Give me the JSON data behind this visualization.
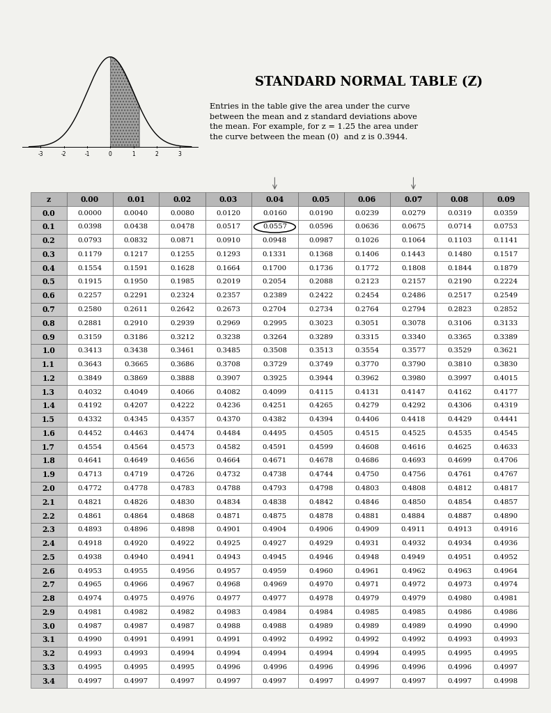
{
  "title_parts": [
    "S",
    "TANDARD ",
    "N",
    "ORMAL ",
    "T",
    "ABLE (",
    "Z",
    ")"
  ],
  "title_smallcaps": "STANDARD NORMAL TABLE (Z)",
  "description_lines": [
    "Entries in the table give the area under the curve",
    "between the mean and z standard deviations above",
    "the mean. For example, for z = 1.25 the area under",
    "the curve between the mean (0)  and z is 0.3944."
  ],
  "col_headers": [
    "0.00",
    "0.01",
    "0.02",
    "0.03",
    "0.04",
    "0.05",
    "0.06",
    "0.07",
    "0.08",
    "0.09"
  ],
  "row_labels": [
    "0.0",
    "0.1",
    "0.2",
    "0.3",
    "0.4",
    "0.5",
    "0.6",
    "0.7",
    "0.8",
    "0.9",
    "1.0",
    "1.1",
    "1.2",
    "1.3",
    "1.4",
    "1.5",
    "1.6",
    "1.7",
    "1.8",
    "1.9",
    "2.0",
    "2.1",
    "2.2",
    "2.3",
    "2.4",
    "2.5",
    "2.6",
    "2.7",
    "2.8",
    "2.9",
    "3.0",
    "3.1",
    "3.2",
    "3.3",
    "3.4"
  ],
  "table_data": [
    [
      "0.0000",
      "0.0040",
      "0.0080",
      "0.0120",
      "0.0160",
      "0.0190",
      "0.0239",
      "0.0279",
      "0.0319",
      "0.0359"
    ],
    [
      "0.0398",
      "0.0438",
      "0.0478",
      "0.0517",
      "0.0557",
      "0.0596",
      "0.0636",
      "0.0675",
      "0.0714",
      "0.0753"
    ],
    [
      "0.0793",
      "0.0832",
      "0.0871",
      "0.0910",
      "0.0948",
      "0.0987",
      "0.1026",
      "0.1064",
      "0.1103",
      "0.1141"
    ],
    [
      "0.1179",
      "0.1217",
      "0.1255",
      "0.1293",
      "0.1331",
      "0.1368",
      "0.1406",
      "0.1443",
      "0.1480",
      "0.1517"
    ],
    [
      "0.1554",
      "0.1591",
      "0.1628",
      "0.1664",
      "0.1700",
      "0.1736",
      "0.1772",
      "0.1808",
      "0.1844",
      "0.1879"
    ],
    [
      "0.1915",
      "0.1950",
      "0.1985",
      "0.2019",
      "0.2054",
      "0.2088",
      "0.2123",
      "0.2157",
      "0.2190",
      "0.2224"
    ],
    [
      "0.2257",
      "0.2291",
      "0.2324",
      "0.2357",
      "0.2389",
      "0.2422",
      "0.2454",
      "0.2486",
      "0.2517",
      "0.2549"
    ],
    [
      "0.2580",
      "0.2611",
      "0.2642",
      "0.2673",
      "0.2704",
      "0.2734",
      "0.2764",
      "0.2794",
      "0.2823",
      "0.2852"
    ],
    [
      "0.2881",
      "0.2910",
      "0.2939",
      "0.2969",
      "0.2995",
      "0.3023",
      "0.3051",
      "0.3078",
      "0.3106",
      "0.3133"
    ],
    [
      "0.3159",
      "0.3186",
      "0.3212",
      "0.3238",
      "0.3264",
      "0.3289",
      "0.3315",
      "0.3340",
      "0.3365",
      "0.3389"
    ],
    [
      "0.3413",
      "0.3438",
      "0.3461",
      "0.3485",
      "0.3508",
      "0.3513",
      "0.3554",
      "0.3577",
      "0.3529",
      "0.3621"
    ],
    [
      "0.3643",
      "0.3665",
      "0.3686",
      "0.3708",
      "0.3729",
      "0.3749",
      "0.3770",
      "0.3790",
      "0.3810",
      "0.3830"
    ],
    [
      "0.3849",
      "0.3869",
      "0.3888",
      "0.3907",
      "0.3925",
      "0.3944",
      "0.3962",
      "0.3980",
      "0.3997",
      "0.4015"
    ],
    [
      "0.4032",
      "0.4049",
      "0.4066",
      "0.4082",
      "0.4099",
      "0.4115",
      "0.4131",
      "0.4147",
      "0.4162",
      "0.4177"
    ],
    [
      "0.4192",
      "0.4207",
      "0.4222",
      "0.4236",
      "0.4251",
      "0.4265",
      "0.4279",
      "0.4292",
      "0.4306",
      "0.4319"
    ],
    [
      "0.4332",
      "0.4345",
      "0.4357",
      "0.4370",
      "0.4382",
      "0.4394",
      "0.4406",
      "0.4418",
      "0.4429",
      "0.4441"
    ],
    [
      "0.4452",
      "0.4463",
      "0.4474",
      "0.4484",
      "0.4495",
      "0.4505",
      "0.4515",
      "0.4525",
      "0.4535",
      "0.4545"
    ],
    [
      "0.4554",
      "0.4564",
      "0.4573",
      "0.4582",
      "0.4591",
      "0.4599",
      "0.4608",
      "0.4616",
      "0.4625",
      "0.4633"
    ],
    [
      "0.4641",
      "0.4649",
      "0.4656",
      "0.4664",
      "0.4671",
      "0.4678",
      "0.4686",
      "0.4693",
      "0.4699",
      "0.4706"
    ],
    [
      "0.4713",
      "0.4719",
      "0.4726",
      "0.4732",
      "0.4738",
      "0.4744",
      "0.4750",
      "0.4756",
      "0.4761",
      "0.4767"
    ],
    [
      "0.4772",
      "0.4778",
      "0.4783",
      "0.4788",
      "0.4793",
      "0.4798",
      "0.4803",
      "0.4808",
      "0.4812",
      "0.4817"
    ],
    [
      "0.4821",
      "0.4826",
      "0.4830",
      "0.4834",
      "0.4838",
      "0.4842",
      "0.4846",
      "0.4850",
      "0.4854",
      "0.4857"
    ],
    [
      "0.4861",
      "0.4864",
      "0.4868",
      "0.4871",
      "0.4875",
      "0.4878",
      "0.4881",
      "0.4884",
      "0.4887",
      "0.4890"
    ],
    [
      "0.4893",
      "0.4896",
      "0.4898",
      "0.4901",
      "0.4904",
      "0.4906",
      "0.4909",
      "0.4911",
      "0.4913",
      "0.4916"
    ],
    [
      "0.4918",
      "0.4920",
      "0.4922",
      "0.4925",
      "0.4927",
      "0.4929",
      "0.4931",
      "0.4932",
      "0.4934",
      "0.4936"
    ],
    [
      "0.4938",
      "0.4940",
      "0.4941",
      "0.4943",
      "0.4945",
      "0.4946",
      "0.4948",
      "0.4949",
      "0.4951",
      "0.4952"
    ],
    [
      "0.4953",
      "0.4955",
      "0.4956",
      "0.4957",
      "0.4959",
      "0.4960",
      "0.4961",
      "0.4962",
      "0.4963",
      "0.4964"
    ],
    [
      "0.4965",
      "0.4966",
      "0.4967",
      "0.4968",
      "0.4969",
      "0.4970",
      "0.4971",
      "0.4972",
      "0.4973",
      "0.4974"
    ],
    [
      "0.4974",
      "0.4975",
      "0.4976",
      "0.4977",
      "0.4977",
      "0.4978",
      "0.4979",
      "0.4979",
      "0.4980",
      "0.4981"
    ],
    [
      "0.4981",
      "0.4982",
      "0.4982",
      "0.4983",
      "0.4984",
      "0.4984",
      "0.4985",
      "0.4985",
      "0.4986",
      "0.4986"
    ],
    [
      "0.4987",
      "0.4987",
      "0.4987",
      "0.4988",
      "0.4988",
      "0.4989",
      "0.4989",
      "0.4989",
      "0.4990",
      "0.4990"
    ],
    [
      "0.4990",
      "0.4991",
      "0.4991",
      "0.4991",
      "0.4992",
      "0.4992",
      "0.4992",
      "0.4992",
      "0.4993",
      "0.4993"
    ],
    [
      "0.4993",
      "0.4993",
      "0.4994",
      "0.4994",
      "0.4994",
      "0.4994",
      "0.4994",
      "0.4995",
      "0.4995",
      "0.4995"
    ],
    [
      "0.4995",
      "0.4995",
      "0.4995",
      "0.4996",
      "0.4996",
      "0.4996",
      "0.4996",
      "0.4996",
      "0.4996",
      "0.4997"
    ],
    [
      "0.4997",
      "0.4997",
      "0.4997",
      "0.4997",
      "0.4997",
      "0.4997",
      "0.4997",
      "0.4997",
      "0.4997",
      "0.4998"
    ]
  ],
  "highlight_row": 1,
  "highlight_col": 4,
  "page_bg": "#f2f2ee",
  "table_border_color": "#555555",
  "header_bg": "#b8b8b8",
  "row_label_bg": "#c8c8c8",
  "cell_bg": "#ffffff",
  "cell_border": "#aaaaaa"
}
